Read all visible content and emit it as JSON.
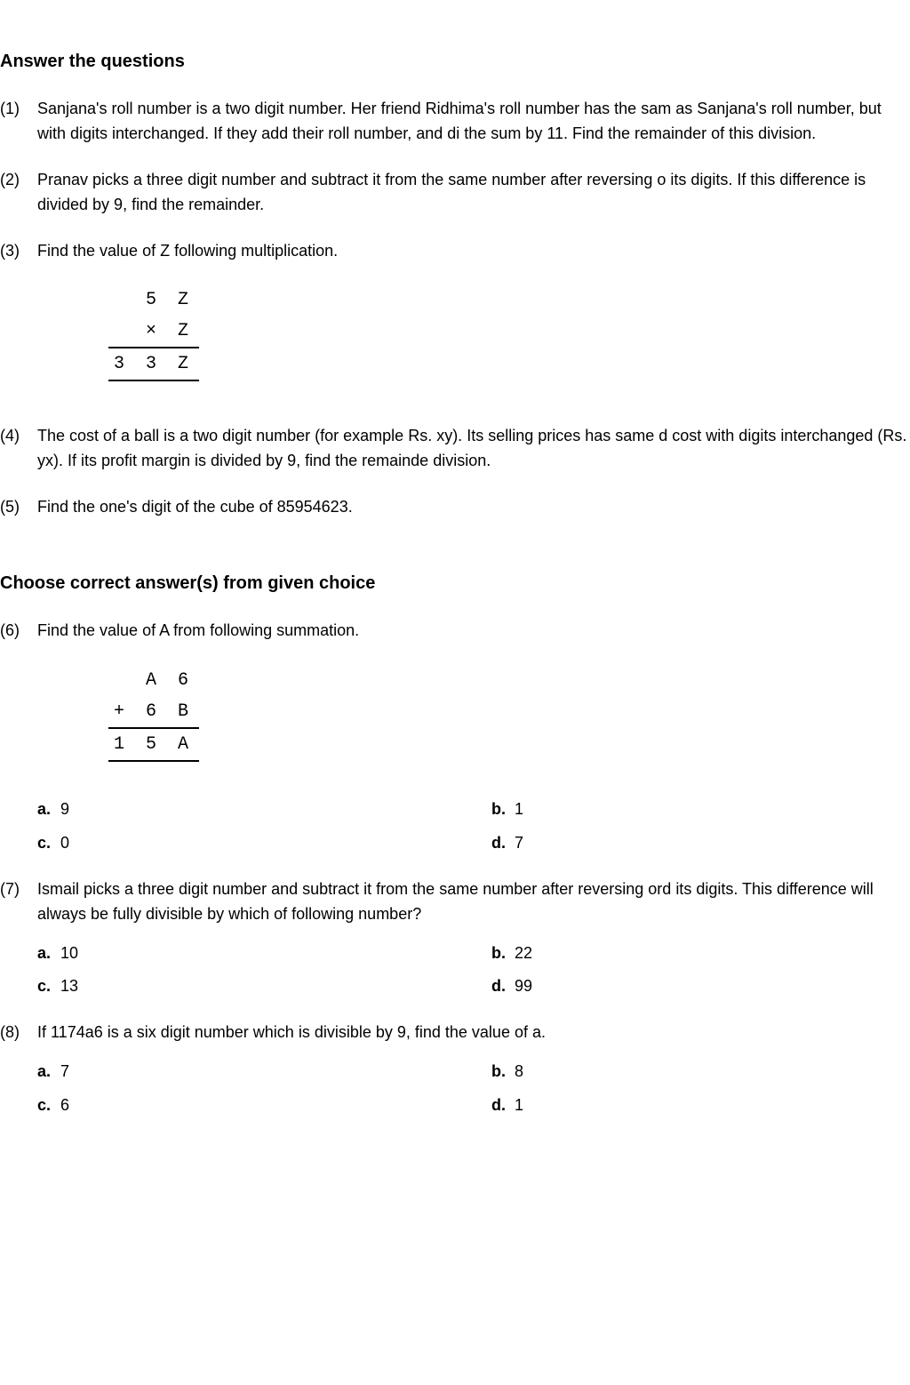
{
  "section1": {
    "heading": "Answer the questions"
  },
  "q1": {
    "num": "(1)",
    "text": "Sanjana's roll number is a two digit number. Her friend Ridhima's roll number has the sam as Sanjana's roll number, but with digits interchanged. If they add their roll number, and di the sum by 11. Find the remainder of this division."
  },
  "q2": {
    "num": "(2)",
    "text": "Pranav picks a three digit number and subtract it from the same number after reversing o its digits. If this difference is divided by 9, find the remainder."
  },
  "q3": {
    "num": "(3)",
    "text": "Find the value of Z following multiplication.",
    "math": {
      "row1": "5 Z",
      "row2": "× Z",
      "row3": "3 3 Z"
    }
  },
  "q4": {
    "num": "(4)",
    "text": "The cost of a ball is a two digit number (for example Rs. xy). Its selling prices has same d cost with digits interchanged (Rs. yx). If its profit margin is divided by 9, find the remainde division."
  },
  "q5": {
    "num": "(5)",
    "text": "Find the one's digit of the cube of 85954623."
  },
  "section2": {
    "heading": "Choose correct answer(s) from given choice"
  },
  "q6": {
    "num": "(6)",
    "text": "Find the value of A from following summation.",
    "math": {
      "row1": "A 6",
      "row2": "+ 6 B",
      "row3": "1 5 A"
    },
    "choices": {
      "a": {
        "label": "a.",
        "text": "9"
      },
      "b": {
        "label": "b.",
        "text": "1"
      },
      "c": {
        "label": "c.",
        "text": "0"
      },
      "d": {
        "label": "d.",
        "text": "7"
      }
    }
  },
  "q7": {
    "num": "(7)",
    "text": "Ismail picks a three digit number and subtract it from the same number after reversing ord its digits. This difference will always be fully divisible by which of following number?",
    "choices": {
      "a": {
        "label": "a.",
        "text": "10"
      },
      "b": {
        "label": "b.",
        "text": "22"
      },
      "c": {
        "label": "c.",
        "text": "13"
      },
      "d": {
        "label": "d.",
        "text": "99"
      }
    }
  },
  "q8": {
    "num": "(8)",
    "text": "If 1174a6 is a six digit number which is divisible by 9, find the value of a.",
    "choices": {
      "a": {
        "label": "a.",
        "text": "7"
      },
      "b": {
        "label": "b.",
        "text": "8"
      },
      "c": {
        "label": "c.",
        "text": "6"
      },
      "d": {
        "label": "d.",
        "text": "1"
      }
    }
  }
}
